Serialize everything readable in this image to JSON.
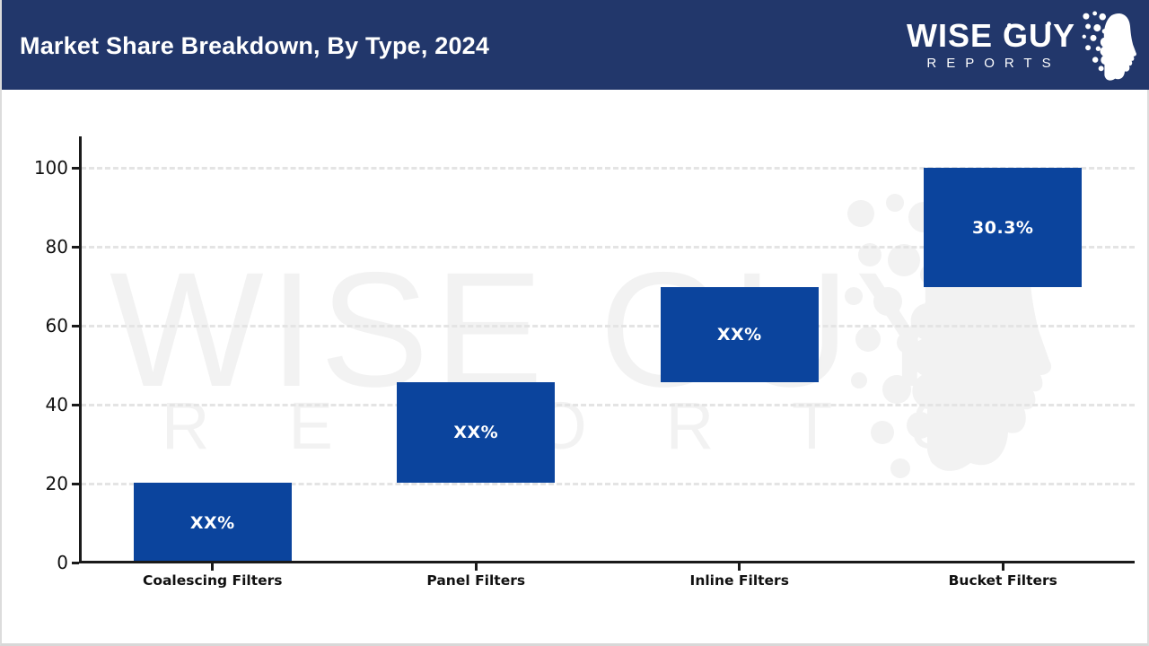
{
  "header": {
    "title": "Market Share Breakdown, By Type, 2024",
    "background_color": "#22376b",
    "title_color": "#ffffff",
    "logo": {
      "wordmark": "WISE GUY",
      "subtext": "REPORTS"
    }
  },
  "watermark": {
    "wordmark": "WISE GUY",
    "subtext": "REPORTS"
  },
  "chart_data": {
    "type": "bar",
    "variant": "floating-waterfall",
    "title": "Market Share Breakdown, By Type, 2024",
    "categories": [
      "Coalescing Filters",
      "Panel Filters",
      "Inline Filters",
      "Bucket Filters"
    ],
    "segments": [
      {
        "category": "Coalescing Filters",
        "start": 0,
        "end": 20.2,
        "value_label": "XX%"
      },
      {
        "category": "Panel Filters",
        "start": 20.2,
        "end": 45.7,
        "value_label": "XX%"
      },
      {
        "category": "Inline Filters",
        "start": 45.7,
        "end": 69.7,
        "value_label": "XX%"
      },
      {
        "category": "Bucket Filters",
        "start": 69.7,
        "end": 100,
        "value_label": "30.3%"
      }
    ],
    "yticks": [
      0,
      20,
      40,
      60,
      80,
      100
    ],
    "ylim": [
      0,
      107
    ],
    "xlabel": "",
    "ylabel": "",
    "legend": null,
    "grid": {
      "horizontal": true,
      "style": "dashed",
      "color": "#e4e4e4"
    },
    "bar_color": "#0b449d",
    "bar_label_color": "#ffffff",
    "axis_color": "#1a1a1a",
    "tick_label_color": "#111111"
  }
}
